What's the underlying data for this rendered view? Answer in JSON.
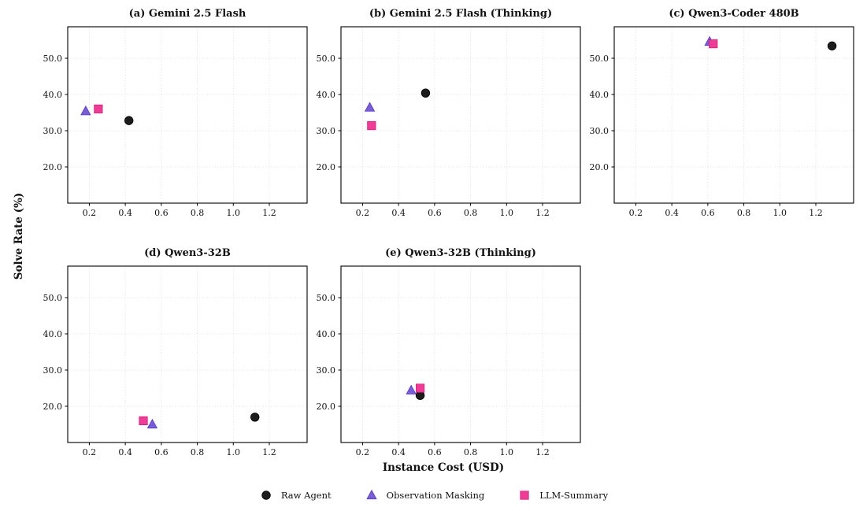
{
  "figure": {
    "xlabel": "Instance Cost (USD)",
    "ylabel": "Solve Rate (%)",
    "background": "#ffffff",
    "grid": true,
    "grid_style": "dotted",
    "legend_position": "bottom"
  },
  "legend": [
    {
      "label": "Raw Agent",
      "marker": "circle",
      "color": "#1c1c1c",
      "edge": "#000000"
    },
    {
      "label": "Observation Masking",
      "marker": "triangle",
      "color": "#7a5dd6",
      "edge": "#5436c9"
    },
    {
      "label": "LLM-Summary",
      "marker": "square",
      "color": "#f03c96",
      "edge": "#cf1f78"
    }
  ],
  "chart_data": [
    {
      "type": "scatter",
      "title": "(a) Gemini 2.5 Flash",
      "xlabel": "Instance Cost (USD)",
      "ylabel": "Solve Rate (%)",
      "xlim": [
        0.08,
        1.41
      ],
      "ylim": [
        10,
        58.7
      ],
      "xticks": [
        0.2,
        0.4,
        0.6,
        0.8,
        1.0,
        1.2
      ],
      "yticks": [
        20.0,
        30.0,
        40.0,
        50.0
      ],
      "series": [
        {
          "name": "Raw Agent",
          "points": [
            [
              0.42,
              32.8
            ]
          ]
        },
        {
          "name": "Observation Masking",
          "points": [
            [
              0.18,
              35.4
            ]
          ]
        },
        {
          "name": "LLM-Summary",
          "points": [
            [
              0.25,
              36.0
            ]
          ]
        }
      ]
    },
    {
      "type": "scatter",
      "title": "(b) Gemini 2.5 Flash (Thinking)",
      "xlabel": "Instance Cost (USD)",
      "ylabel": "Solve Rate (%)",
      "xlim": [
        0.08,
        1.41
      ],
      "ylim": [
        10,
        58.7
      ],
      "xticks": [
        0.2,
        0.4,
        0.6,
        0.8,
        1.0,
        1.2
      ],
      "yticks": [
        20.0,
        30.0,
        40.0,
        50.0
      ],
      "series": [
        {
          "name": "Raw Agent",
          "points": [
            [
              0.55,
              40.4
            ]
          ]
        },
        {
          "name": "Observation Masking",
          "points": [
            [
              0.24,
              36.4
            ]
          ]
        },
        {
          "name": "LLM-Summary",
          "points": [
            [
              0.25,
              31.4
            ]
          ]
        }
      ]
    },
    {
      "type": "scatter",
      "title": "(c) Qwen3-Coder 480B",
      "xlabel": "Instance Cost (USD)",
      "ylabel": "Solve Rate (%)",
      "xlim": [
        0.08,
        1.41
      ],
      "ylim": [
        10,
        58.7
      ],
      "xticks": [
        0.2,
        0.4,
        0.6,
        0.8,
        1.0,
        1.2
      ],
      "yticks": [
        20.0,
        30.0,
        40.0,
        50.0
      ],
      "series": [
        {
          "name": "Raw Agent",
          "points": [
            [
              1.29,
              53.4
            ]
          ]
        },
        {
          "name": "Observation Masking",
          "points": [
            [
              0.61,
              54.6
            ]
          ]
        },
        {
          "name": "LLM-Summary",
          "points": [
            [
              0.63,
              54.0
            ]
          ]
        }
      ]
    },
    {
      "type": "scatter",
      "title": "(d) Qwen3-32B",
      "xlabel": "Instance Cost (USD)",
      "ylabel": "Solve Rate (%)",
      "xlim": [
        0.08,
        1.41
      ],
      "ylim": [
        10,
        58.7
      ],
      "xticks": [
        0.2,
        0.4,
        0.6,
        0.8,
        1.0,
        1.2
      ],
      "yticks": [
        20.0,
        30.0,
        40.0,
        50.0
      ],
      "series": [
        {
          "name": "Raw Agent",
          "points": [
            [
              1.12,
              17.0
            ]
          ]
        },
        {
          "name": "Observation Masking",
          "points": [
            [
              0.55,
              15.0
            ]
          ]
        },
        {
          "name": "LLM-Summary",
          "points": [
            [
              0.5,
              16.0
            ]
          ]
        }
      ]
    },
    {
      "type": "scatter",
      "title": "(e) Qwen3-32B (Thinking)",
      "xlabel": "Instance Cost (USD)",
      "ylabel": "Solve Rate (%)",
      "xlim": [
        0.08,
        1.41
      ],
      "ylim": [
        10,
        58.7
      ],
      "xticks": [
        0.2,
        0.4,
        0.6,
        0.8,
        1.0,
        1.2
      ],
      "yticks": [
        20.0,
        30.0,
        40.0,
        50.0
      ],
      "series": [
        {
          "name": "Raw Agent",
          "points": [
            [
              0.52,
              23.0
            ]
          ]
        },
        {
          "name": "Observation Masking",
          "points": [
            [
              0.47,
              24.4
            ]
          ]
        },
        {
          "name": "LLM-Summary",
          "points": [
            [
              0.52,
              25.0
            ]
          ]
        }
      ]
    }
  ]
}
